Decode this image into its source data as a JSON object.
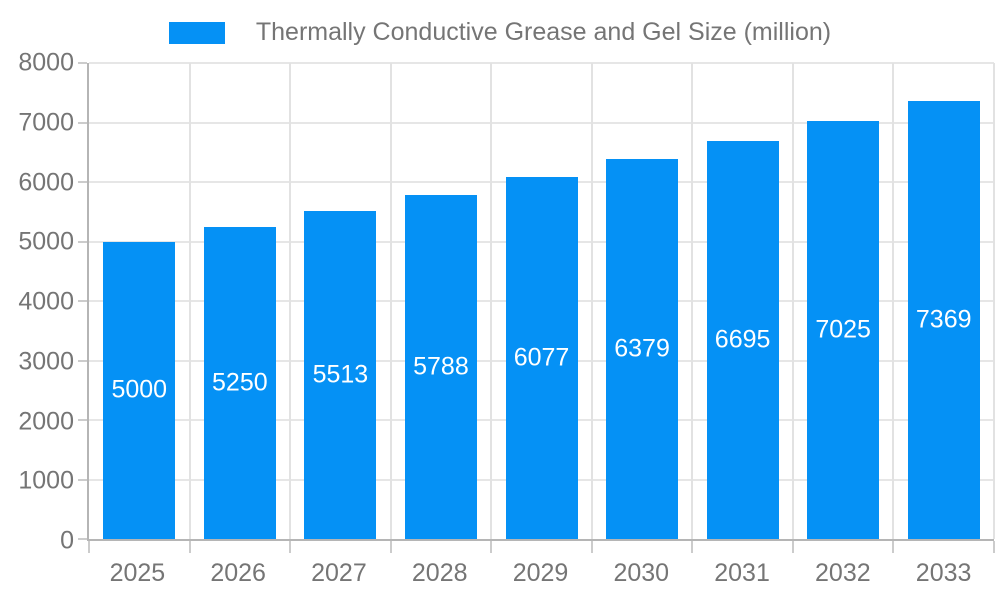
{
  "legend": {
    "label": "Thermally Conductive Grease and Gel Size (million)"
  },
  "colors": {
    "bar": "#0591f5",
    "axis_text": "#757575",
    "bar_label": "#ffffff"
  },
  "chart_data": {
    "type": "bar",
    "title": "Thermally Conductive Grease and Gel Size (million)",
    "categories": [
      "2025",
      "2026",
      "2027",
      "2028",
      "2029",
      "2030",
      "2031",
      "2032",
      "2033"
    ],
    "values": [
      5000,
      5250,
      5513,
      5788,
      6077,
      6379,
      6695,
      7025,
      7369
    ],
    "xlabel": "",
    "ylabel": "",
    "ylim": [
      0,
      8000
    ],
    "ytick_step": 1000,
    "grid": true,
    "legend_position": "top",
    "bar_labels_inside": true
  }
}
